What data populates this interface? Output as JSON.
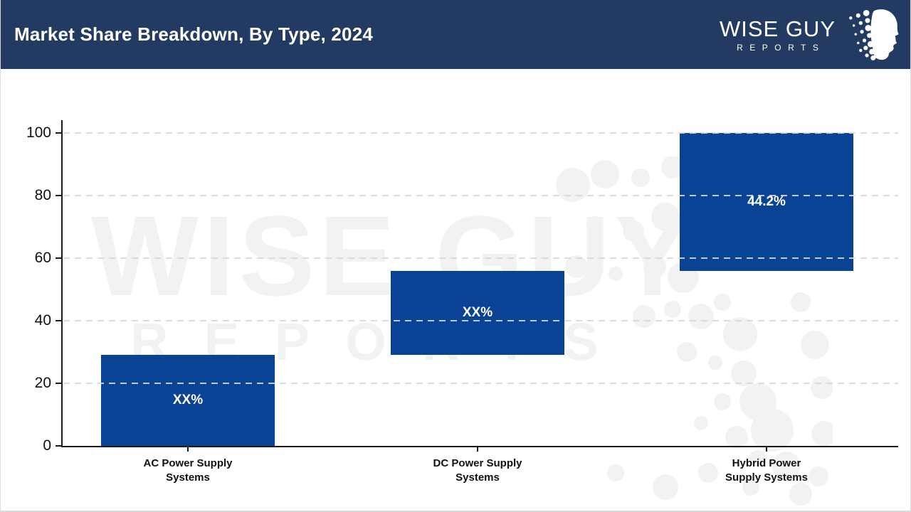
{
  "header": {
    "title": "Market Share Breakdown, By Type, 2024",
    "logo": {
      "wordmark": "WISE GUY",
      "sub": "REPORTS"
    }
  },
  "watermark": {
    "wordmark": "WISE GUY",
    "sub": "REPORTS"
  },
  "colors": {
    "header_bg": "#233A63",
    "bar": "#0A4296",
    "grid": "#D8D8D8",
    "axis": "#1A1A1A",
    "watermark": "#F2F2F2",
    "value_label": "#FFFFFF",
    "tick_label": "#111111"
  },
  "chart_data": {
    "type": "bar",
    "variant": "floating-waterfall-segments",
    "title": "Market Share Breakdown, By Type, 2024",
    "categories": [
      "AC Power Supply Systems",
      "DC Power Supply Systems",
      "Hybrid Power Supply Systems"
    ],
    "segments": [
      {
        "category_lines": [
          "AC Power Supply",
          "Systems"
        ],
        "start": 0,
        "end": 29,
        "value": 29,
        "value_label": "XX%"
      },
      {
        "category_lines": [
          "DC Power Supply",
          "Systems"
        ],
        "start": 29,
        "end": 55.8,
        "value": 26.8,
        "value_label": "XX%"
      },
      {
        "category_lines": [
          "Hybrid Power",
          "Supply Systems"
        ],
        "start": 55.8,
        "end": 100,
        "value": 44.2,
        "value_label": "44.2%"
      }
    ],
    "y_ticks": [
      0,
      20,
      40,
      60,
      80,
      100
    ],
    "ylim": [
      0,
      104
    ],
    "xlabel": "",
    "ylabel": "",
    "grid": "horizontal-dashed",
    "legend": "none"
  }
}
